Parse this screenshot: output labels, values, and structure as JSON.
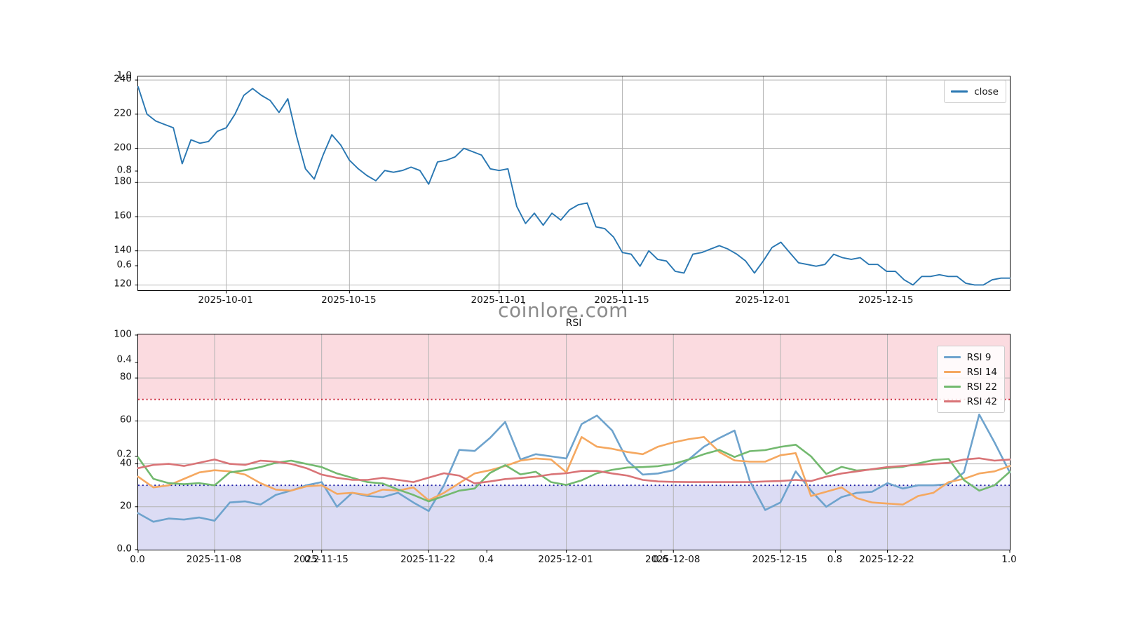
{
  "watermark": "coinlore.com",
  "colors": {
    "close": "#2977b2",
    "rsi9": "#6ea3cd",
    "rsi14": "#f5a860",
    "rsi22": "#73b96f",
    "rsi42": "#d97477",
    "overbought_band": "#fbdbe0",
    "oversold_band": "#dcdcf4",
    "overbought_line": "#cc2b3d",
    "oversold_line": "#2121a8",
    "grid": "#b3b3b3",
    "watermark_color": "#8b8b8b"
  },
  "overlay_axis": {
    "x_labels": [
      "0.0",
      "0.2",
      "0.4",
      "0.6",
      "0.8",
      "1.0"
    ],
    "y_labels": [
      "0.0",
      "0.2",
      "0.4",
      "0.6",
      "0.8",
      "1.0"
    ]
  },
  "chart_data": [
    {
      "type": "line",
      "name": "price",
      "title": "",
      "x_start": "2025-09-21",
      "x_end": "2025-12-29",
      "x_tick_labels": [
        "2025-10-01",
        "2025-10-15",
        "2025-11-01",
        "2025-11-15",
        "2025-12-01",
        "2025-12-15"
      ],
      "ylim": [
        116.9,
        242.1
      ],
      "y_ticks": [
        120,
        140,
        160,
        180,
        200,
        220,
        240
      ],
      "grid": true,
      "legend_position": "upper right",
      "series": [
        {
          "name": "close",
          "color": "#2977b2",
          "width": 1.9,
          "values": [
            236,
            220,
            216,
            214,
            212,
            191,
            205,
            203,
            204,
            210,
            212,
            220,
            231,
            235,
            231,
            228,
            221,
            229,
            207,
            188,
            182,
            196,
            208,
            202,
            193,
            188,
            184,
            181,
            187,
            186,
            187,
            189,
            187,
            179,
            192,
            193,
            195,
            200,
            198,
            196,
            188,
            187,
            188,
            166,
            156,
            162,
            155,
            162,
            158,
            164,
            167,
            168,
            154,
            153,
            148,
            139,
            138,
            131,
            140,
            135,
            134,
            128,
            127,
            138,
            139,
            141,
            143,
            141,
            138,
            134,
            127,
            134,
            142,
            145,
            139,
            133,
            132,
            131,
            132,
            138,
            136,
            135,
            136,
            132,
            132,
            128,
            128,
            123,
            120,
            125,
            125,
            126,
            125,
            125,
            121,
            120,
            120,
            123,
            124,
            124
          ]
        }
      ]
    },
    {
      "type": "line",
      "name": "rsi",
      "title": "RSI",
      "x_start": "2025-11-03",
      "x_end": "2025-12-30",
      "x_tick_labels": [
        "2025-11-08",
        "2025-11-15",
        "2025-11-22",
        "2025-12-01",
        "2025-12-08",
        "2025-12-15",
        "2025-12-22"
      ],
      "ylim": [
        0,
        100.3
      ],
      "y_ticks": [
        0,
        20,
        40,
        60,
        80,
        100
      ],
      "grid": true,
      "bands": [
        {
          "from": 70,
          "to": 100.3,
          "color": "#fbdbe0",
          "name": "overbought-band"
        },
        {
          "from": 0,
          "to": 30,
          "color": "#dcdcf4",
          "name": "oversold-band"
        }
      ],
      "hlines": [
        {
          "value": 70,
          "color": "#cc2b3d",
          "style": "dotted",
          "name": "overbought-threshold"
        },
        {
          "value": 30,
          "color": "#2121a8",
          "style": "dotted",
          "name": "oversold-threshold"
        }
      ],
      "legend_position": "upper right",
      "series": [
        {
          "name": "RSI 9",
          "color": "#6ea3cd",
          "width": 2.6,
          "values": [
            17,
            13,
            14.5,
            14,
            15,
            13.5,
            22,
            22.5,
            21,
            25.5,
            27.5,
            30,
            31.5,
            20,
            26.5,
            25,
            24.5,
            26.5,
            22,
            18,
            30,
            46.5,
            46,
            52,
            59.5,
            42,
            44.5,
            43.5,
            42.5,
            58.5,
            62.5,
            55.5,
            41.5,
            35,
            35.5,
            37,
            42,
            48,
            52,
            55.5,
            32,
            18.5,
            22,
            36.5,
            27.5,
            20,
            24.5,
            26.5,
            27,
            31,
            28.5,
            30,
            30,
            30.5,
            36,
            63,
            50,
            36
          ]
        },
        {
          "name": "RSI 14",
          "color": "#f5a860",
          "width": 2.6,
          "values": [
            34,
            29,
            30,
            33,
            36,
            37,
            36.5,
            35,
            31,
            28,
            27.5,
            29.5,
            30,
            26,
            26.5,
            25.5,
            28,
            27.5,
            29,
            23,
            26.5,
            31,
            35.5,
            37,
            39,
            41.5,
            42.5,
            42,
            36,
            52.5,
            48,
            47,
            45.5,
            44.5,
            48,
            50,
            51.5,
            52.5,
            45.5,
            41.6,
            41,
            41,
            44,
            45,
            25,
            27,
            29,
            24,
            22,
            21.5,
            21,
            25,
            26.5,
            31.5,
            33,
            35.5,
            36.5,
            39
          ]
        },
        {
          "name": "RSI 22",
          "color": "#73b96f",
          "width": 2.6,
          "values": [
            43,
            33,
            31,
            30.5,
            31,
            30,
            36,
            37,
            38.5,
            40.5,
            41.5,
            40,
            38.5,
            35.5,
            33.5,
            31.5,
            30.8,
            28,
            25.5,
            22.5,
            25,
            27.5,
            28.5,
            35.7,
            39.4,
            35.1,
            36.3,
            31.5,
            30.2,
            32.3,
            35.6,
            37.2,
            38.3,
            38.5,
            38.9,
            40,
            42,
            44.5,
            46.5,
            43.2,
            45.9,
            46.4,
            47.9,
            48.9,
            43.5,
            35.3,
            38.6,
            36.9,
            37.4,
            38.1,
            38.6,
            40.2,
            41.8,
            42.3,
            32.4,
            27.5,
            30,
            36.3
          ]
        },
        {
          "name": "RSI 42",
          "color": "#d97477",
          "width": 2.6,
          "values": [
            38,
            39.5,
            40,
            39,
            40.5,
            42,
            40,
            39.5,
            41.5,
            41,
            40,
            38,
            35,
            33.5,
            32.5,
            32.5,
            33.5,
            32.5,
            31.5,
            33.6,
            35.6,
            34.5,
            30.9,
            31.8,
            32.9,
            33.4,
            34,
            35.1,
            35.6,
            36.7,
            36.7,
            35.5,
            34.5,
            32.5,
            31.8,
            31.6,
            31.5,
            31.5,
            31.5,
            31.5,
            31.5,
            31.8,
            32,
            32.5,
            32,
            34,
            35.5,
            36.5,
            37.5,
            38.5,
            39,
            39.5,
            40,
            40.5,
            42,
            42.6,
            41.5,
            42
          ]
        }
      ]
    }
  ]
}
